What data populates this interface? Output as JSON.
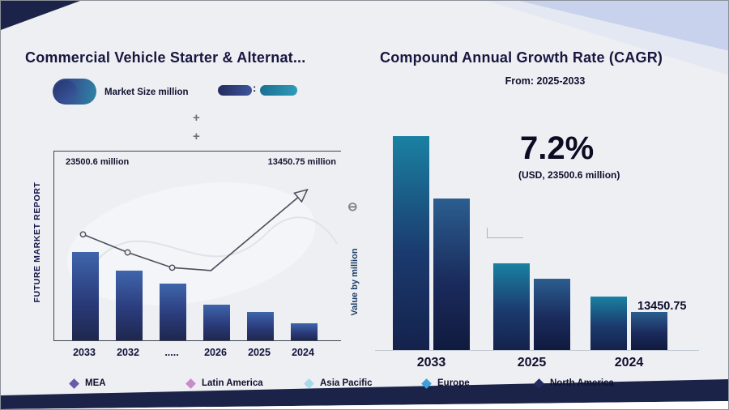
{
  "page": {
    "background": "#edeff3",
    "accent_navy": "#1b2349",
    "accent_periwinkle": "#c9d2ec"
  },
  "icons": {
    "plus": "+",
    "minus_circle": "⊖"
  },
  "left_section": {
    "title": "Commercial Vehicle Starter & Alternat...",
    "legend_label": "Market Size million",
    "pill_separator": ":",
    "side_label": "FUTURE MARKET REPORT",
    "axis_label": "Value by million",
    "start_annotation": "23500.6 million",
    "end_annotation": "13450.75 million"
  },
  "right_section": {
    "title": "Compound Annual Growth Rate (CAGR)",
    "subtitle": "From: 2025-2033",
    "cagr": "7.2%",
    "cagr_note": "(USD, 23500.6 million)",
    "value_annotation": "13450.75"
  },
  "legend_items": [
    {
      "label": "MEA",
      "color": "#6a5aa8"
    },
    {
      "label": "Latin America",
      "color": "#c98bc9"
    },
    {
      "label": "Asia Pacific",
      "color": "#a6d9ee"
    },
    {
      "label": "Europe",
      "color": "#3f9fd8"
    },
    {
      "label": "North America",
      "color": "#232d5e"
    }
  ],
  "chart_data": [
    {
      "type": "bar",
      "title": "Market Size million (Future Market Report)",
      "categories": [
        "2033",
        "2032",
        ".....",
        "2026",
        "2025",
        "2024"
      ],
      "series": [
        {
          "name": "Market Size (relative bar height %)",
          "values": [
            47,
            37,
            30,
            19,
            15,
            9
          ]
        }
      ],
      "known_values_million": {
        "2033": 23500.6,
        "2024": 13450.75
      },
      "annotations": [
        "23500.6 million",
        "13450.75 million"
      ],
      "ylabel": "Value by million",
      "grid": false,
      "legend_position": "top",
      "bar_gradient": [
        "#3f65ab",
        "#1e274e"
      ],
      "trend_line_pct": [
        [
          10,
          43.5
        ],
        [
          25.5,
          53
        ],
        [
          41,
          61
        ],
        [
          54.5,
          62.5
        ],
        [
          88,
          20
        ]
      ],
      "trend_markers": [
        0,
        1,
        2
      ]
    },
    {
      "type": "bar",
      "title": "Compound Annual Growth Rate (CAGR) From: 2025-2033",
      "categories": [
        "2033",
        "2025",
        "2024"
      ],
      "series": [
        {
          "name": "series-a (relative bar height %)",
          "values": [
            96,
            39,
            24
          ]
        },
        {
          "name": "series-b (relative bar height %)",
          "values": [
            68,
            32,
            17
          ]
        }
      ],
      "cagr_pct": 7.2,
      "base_value_million": 13450.75,
      "end_value_million": 23500.6,
      "grid": false,
      "bar_gradients": {
        "series_a": [
          "#1a81a2",
          "#14224c"
        ],
        "series_b": [
          "#2b5e90",
          "#101a3e"
        ]
      }
    }
  ]
}
